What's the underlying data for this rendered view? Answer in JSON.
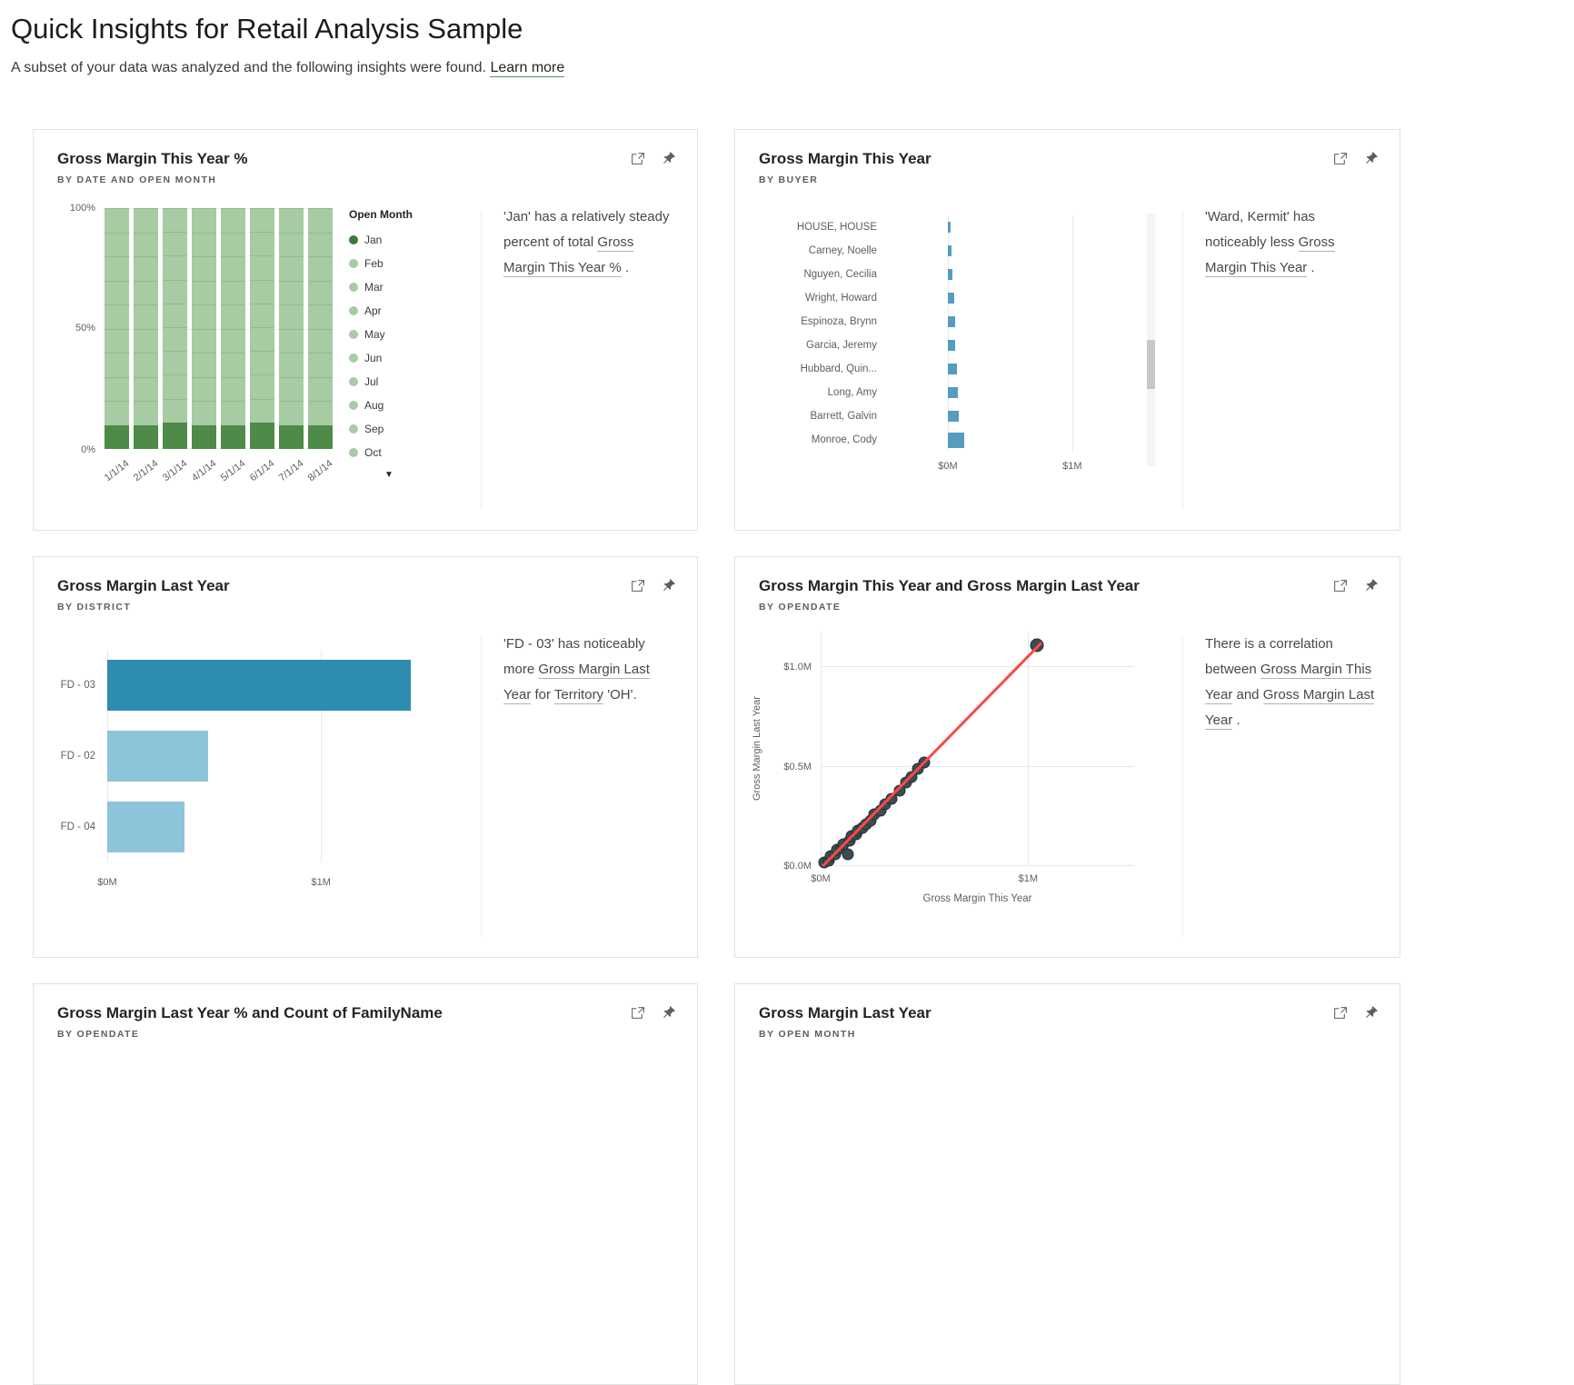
{
  "page": {
    "title": "Quick Insights for Retail Analysis Sample",
    "subtitle": "A subset of your data was analyzed and the following insights were found.",
    "learn_more_label": "Learn more"
  },
  "icons": {
    "focus_mode": "open-in-focus-mode-icon",
    "pin": "pin-visual-icon",
    "legend_more": "▼"
  },
  "colors": {
    "highlight_green": "#4e8b49",
    "light_green": "#a7cba3",
    "buyer_bar_blue": "#569cbf",
    "district_dark_blue": "#2e8cb1",
    "district_light_blue": "#8ec4da",
    "scatter_point": "#3d4b52",
    "trend_red": "#fb4a42",
    "card_border": "#e2e2e2",
    "text_primary": "#252423",
    "text_secondary": "#605e5c",
    "insight_underline": "#a3bda3"
  },
  "cards": [
    {
      "title": "Gross Margin This Year %",
      "subtitle": "BY DATE AND OPEN MONTH",
      "insight": [
        {
          "t": "'Jan' has a relatively steady percent of total "
        },
        {
          "t": "Gross Margin This Year %",
          "u": true
        },
        {
          "t": " ."
        }
      ],
      "chart_data": {
        "type": "bar",
        "variant": "stacked-100",
        "categories": [
          "1/1/14",
          "2/1/14",
          "3/1/14",
          "4/1/14",
          "5/1/14",
          "6/1/14",
          "7/1/14",
          "8/1/14"
        ],
        "yticks": [
          "100%",
          "50%",
          "0%"
        ],
        "legend_title": "Open Month",
        "legend": [
          "Jan",
          "Feb",
          "Mar",
          "Apr",
          "May",
          "Jun",
          "Jul",
          "Aug",
          "Sep",
          "Oct"
        ],
        "highlight_series": "Jan",
        "highlight_pct_per_category": [
          10,
          10,
          11,
          10,
          10,
          11,
          10,
          10
        ],
        "note": "each visible month contributes a roughly equal share (~10%) of every column"
      }
    },
    {
      "title": "Gross Margin This Year",
      "subtitle": "BY BUYER",
      "insight": [
        {
          "t": "'Ward, Kermit' has noticeably less "
        },
        {
          "t": "Gross Margin This Year",
          "u": true
        },
        {
          "t": " ."
        }
      ],
      "chart_data": {
        "type": "bar",
        "orientation": "horizontal",
        "categories": [
          "HOUSE, HOUSE",
          "Carney, Noelle",
          "Nguyen, Cecilia",
          "Wright, Howard",
          "Espinoza, Brynn",
          "Garcia, Jeremy",
          "Hubbard, Quin...",
          "Long, Amy",
          "Barrett, Galvin",
          "Monroe, Cody"
        ],
        "values": [
          0.02,
          0.03,
          0.04,
          0.05,
          0.055,
          0.06,
          0.07,
          0.08,
          0.09,
          0.13
        ],
        "value_unit": "$M",
        "xticks": [
          "$0M",
          "$1M"
        ],
        "xlim": [
          0,
          1.52
        ],
        "scrollbar": true
      }
    },
    {
      "title": "Gross Margin Last Year",
      "subtitle": "BY DISTRICT",
      "insight": [
        {
          "t": "'FD - 03' has noticeably more "
        },
        {
          "t": "Gross Margin Last Year",
          "u": true
        },
        {
          "t": " for "
        },
        {
          "t": "Territory",
          "u": true
        },
        {
          "t": " 'OH'."
        }
      ],
      "chart_data": {
        "type": "bar",
        "orientation": "horizontal",
        "categories": [
          "FD - 03",
          "FD - 02",
          "FD - 04"
        ],
        "values": [
          1.42,
          0.47,
          0.36
        ],
        "value_unit": "$M",
        "xticks": [
          "$0M",
          "$1M"
        ],
        "xlim": [
          0,
          1.56
        ],
        "bar_colors": [
          "#2e8cb1",
          "#8ec4da",
          "#8ec4da"
        ]
      }
    },
    {
      "title": "Gross Margin This Year and Gross Margin Last Year",
      "subtitle": "BY OPENDATE",
      "insight": [
        {
          "t": "There is a correlation between "
        },
        {
          "t": "Gross Margin This Year",
          "u": true
        },
        {
          "t": " and "
        },
        {
          "t": "Gross Margin Last Year",
          "u": true
        },
        {
          "t": " ."
        }
      ],
      "chart_data": {
        "type": "scatter",
        "xlabel": "Gross Margin This Year",
        "ylabel": "Gross Margin Last Year",
        "xticks": [
          "$0M",
          "$1M"
        ],
        "yticks": [
          "$0.0M",
          "$0.5M",
          "$1.0M"
        ],
        "xlim": [
          0,
          1.51
        ],
        "ylim": [
          0,
          1.18
        ],
        "points": [
          [
            0.02,
            0.02
          ],
          [
            0.04,
            0.03
          ],
          [
            0.05,
            0.05
          ],
          [
            0.07,
            0.06
          ],
          [
            0.08,
            0.08
          ],
          [
            0.1,
            0.09
          ],
          [
            0.11,
            0.11
          ],
          [
            0.13,
            0.06
          ],
          [
            0.14,
            0.13
          ],
          [
            0.15,
            0.15
          ],
          [
            0.17,
            0.16
          ],
          [
            0.18,
            0.18
          ],
          [
            0.2,
            0.19
          ],
          [
            0.22,
            0.21
          ],
          [
            0.24,
            0.23
          ],
          [
            0.26,
            0.26
          ],
          [
            0.29,
            0.28
          ],
          [
            0.31,
            0.31
          ],
          [
            0.34,
            0.34
          ],
          [
            0.38,
            0.38
          ],
          [
            0.41,
            0.42
          ],
          [
            0.44,
            0.45
          ],
          [
            0.47,
            0.49
          ],
          [
            0.5,
            0.52
          ],
          [
            1.04,
            1.11
          ]
        ],
        "trendline": {
          "from": [
            0.01,
            0.0
          ],
          "to": [
            1.06,
            1.12
          ],
          "color": "#fb4a42"
        }
      }
    },
    {
      "title": "Gross Margin Last Year % and Count of FamilyName",
      "subtitle": "BY OPENDATE",
      "insight": []
    },
    {
      "title": "Gross Margin Last Year",
      "subtitle": "BY OPEN MONTH",
      "insight": []
    }
  ]
}
